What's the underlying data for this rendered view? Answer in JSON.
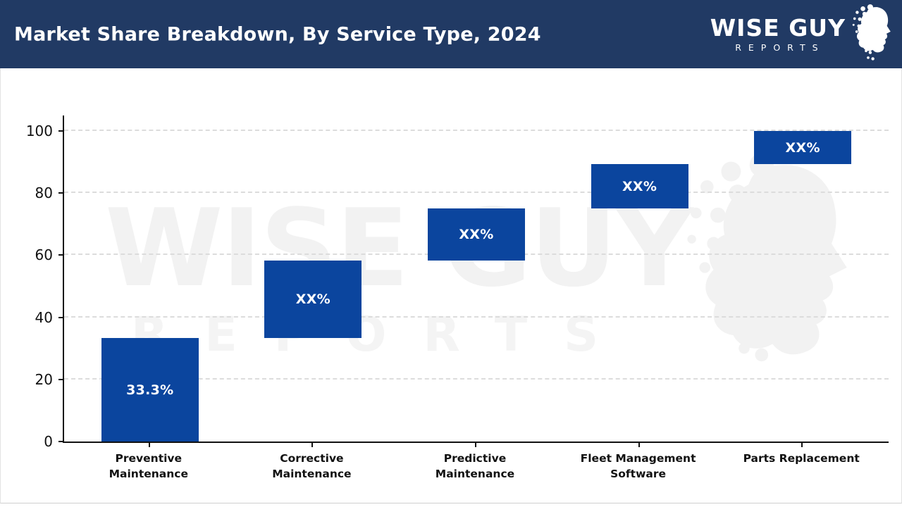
{
  "header": {
    "title": "Market Share Breakdown, By Service Type, 2024",
    "background_color": "#213a64",
    "logo": {
      "line1": "WISE GUY",
      "line2": "REPORTS"
    }
  },
  "watermark": {
    "line1": "WISE GUY",
    "line2": "REPORTS"
  },
  "chart_data": {
    "type": "bar",
    "subtype": "waterfall",
    "title": "Market Share Breakdown, By Service Type, 2024",
    "categories": [
      "Preventive\nMaintenance",
      "Corrective\nMaintenance",
      "Predictive\nMaintenance",
      "Fleet Management\nSoftware",
      "Parts Replacement"
    ],
    "bars": [
      {
        "label": "33.3%",
        "start": 0,
        "end": 33.3
      },
      {
        "label": "XX%",
        "start": 33.3,
        "end": 58.3
      },
      {
        "label": "XX%",
        "start": 58.3,
        "end": 75.0
      },
      {
        "label": "XX%",
        "start": 75.0,
        "end": 89.3
      },
      {
        "label": "XX%",
        "start": 89.3,
        "end": 100.0
      }
    ],
    "yticks": [
      0,
      20,
      40,
      60,
      80,
      100
    ],
    "ylim": [
      0,
      105
    ],
    "xlabel": "",
    "ylabel": "",
    "legend": null,
    "grid": "horizontal-dashed",
    "bar_color": "#0b459e",
    "bar_label_color": "#ffffff",
    "axis_color": "#111111",
    "gridline_color": "#dcdcdc"
  }
}
